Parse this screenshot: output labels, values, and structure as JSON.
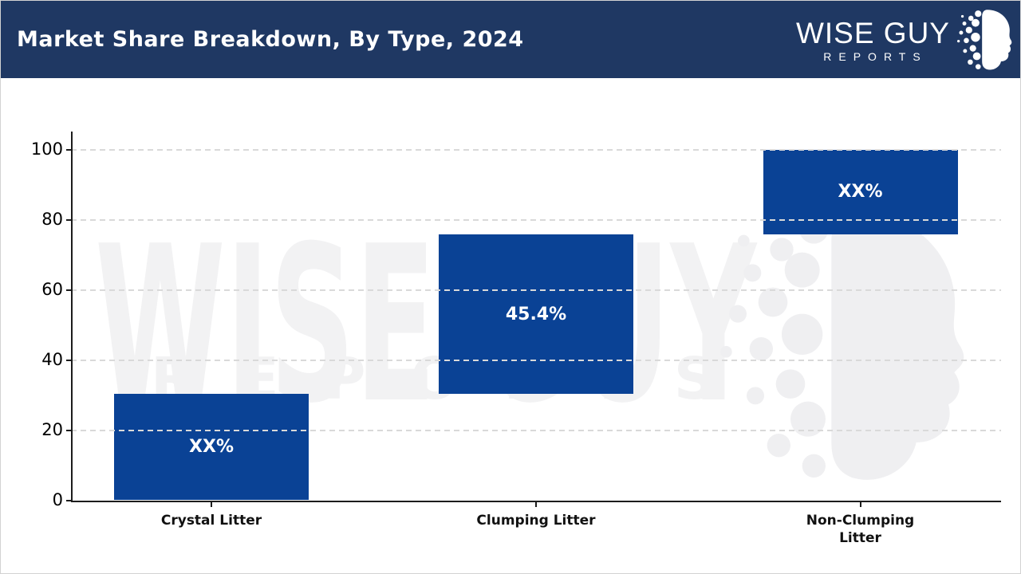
{
  "header": {
    "title": "Market Share Breakdown, By Type, 2024",
    "logo": {
      "brand": "WISE GUY",
      "sub": "REPORTS",
      "face_icon": "wiseguy-face-icon"
    }
  },
  "watermark": {
    "row1": "WISE GUY",
    "row2": "REPORTS",
    "face_icon": "wiseguy-face-watermark"
  },
  "colors": {
    "header_bg": "#1f3863",
    "bar": "#0a4295",
    "grid": "#d9d9d9",
    "axis": "#1c1c1c",
    "bar_label": "#ffffff",
    "watermark": "#f2f2f3"
  },
  "chart_data": {
    "type": "bar",
    "variant": "floating-segment-breakdown",
    "title": "Market Share Breakdown, By Type, 2024",
    "categories": [
      "Crystal Litter",
      "Clumping Litter",
      "Non-Clumping Litter"
    ],
    "bars": [
      {
        "category": "Crystal Litter",
        "start": 0,
        "end": 30.3,
        "label": "XX%"
      },
      {
        "category": "Clumping Litter",
        "start": 30.3,
        "end": 75.7,
        "label": "45.4%"
      },
      {
        "category": "Non-Clumping Litter",
        "start": 75.7,
        "end": 100,
        "label": "XX%"
      }
    ],
    "xlabel": "",
    "ylabel": "",
    "ylim": [
      0,
      105
    ],
    "yticks": [
      0,
      20,
      40,
      60,
      80,
      100
    ],
    "grid": "horizontal-dashed",
    "legend": "none",
    "bar_color": "#0a4295",
    "value_label_color": "#ffffff"
  }
}
